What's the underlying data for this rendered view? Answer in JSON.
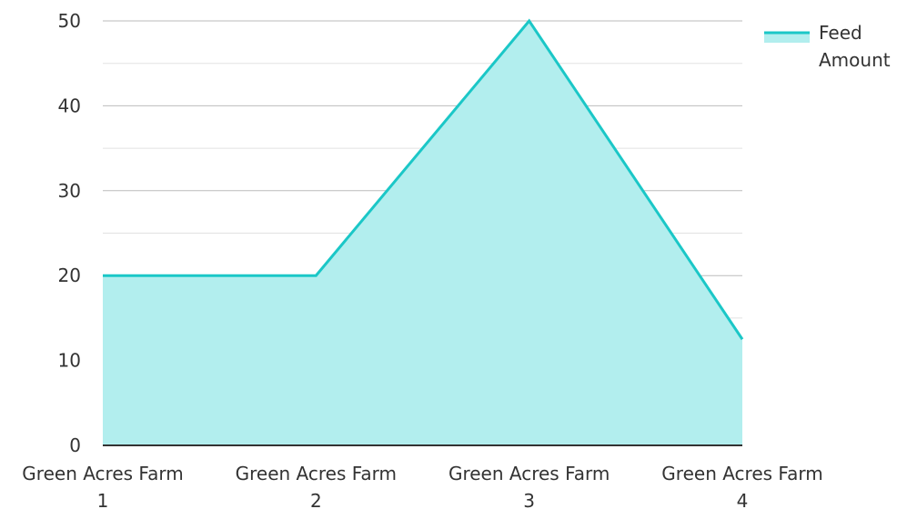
{
  "chart_data": {
    "type": "area",
    "categories": [
      "Green Acres Farm 1",
      "Green Acres Farm 2",
      "Green Acres Farm 3",
      "Green Acres Farm 4"
    ],
    "category_lines": [
      [
        "Green Acres Farm",
        "1"
      ],
      [
        "Green Acres Farm",
        "2"
      ],
      [
        "Green Acres Farm",
        "3"
      ],
      [
        "Green Acres Farm",
        "4"
      ]
    ],
    "series": [
      {
        "name": "Feed Amount",
        "name_lines": [
          "Feed",
          "Amount"
        ],
        "values": [
          20,
          20,
          50,
          12.5
        ]
      }
    ],
    "ylim": [
      0,
      50
    ],
    "yticks": [
      0,
      10,
      20,
      30,
      40,
      50
    ],
    "yticks_labels": [
      "0",
      "10",
      "20",
      "30",
      "40",
      "50"
    ],
    "minor_gridlines": true,
    "legend_position": "top-right",
    "colors": {
      "line": "#1bc7c7",
      "fill": "#b2eeee",
      "grid_major": "#bbbbbb",
      "grid_minor": "#e2e2e2",
      "axis": "#333333"
    }
  }
}
